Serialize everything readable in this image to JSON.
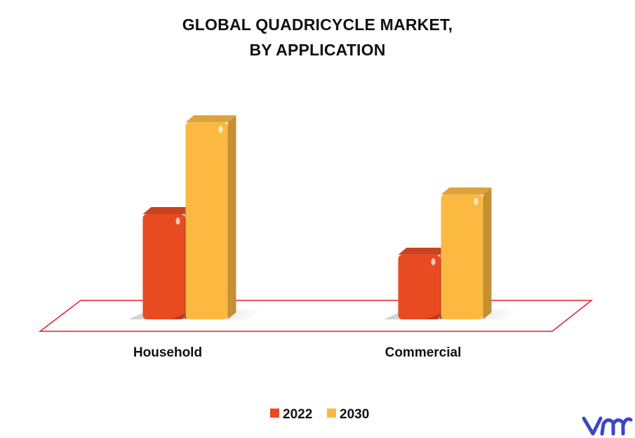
{
  "chart_data": {
    "type": "bar",
    "title_lines": [
      "GLOBAL QUADRICYCLE MARKET,",
      "BY APPLICATION"
    ],
    "categories": [
      "Household",
      "Commercial"
    ],
    "series": [
      {
        "name": "2022",
        "values": [
          140,
          86
        ],
        "color": "#E84A22"
      },
      {
        "name": "2030",
        "values": [
          262,
          166
        ],
        "color": "#FBB942"
      }
    ],
    "ylim": [
      0,
      280
    ],
    "grid": false,
    "legend_position": "bottom-center",
    "floor_color": "#E0202A"
  },
  "brand": {
    "logo_text": "vmr",
    "logo_color": "#3A47C9"
  }
}
